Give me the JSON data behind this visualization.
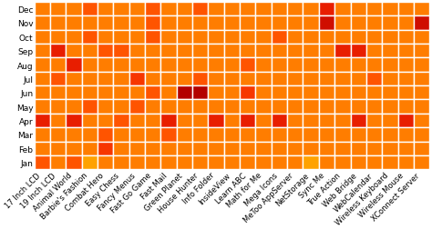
{
  "months": [
    "Dec",
    "Nov",
    "Oct",
    "Sep",
    "Aug",
    "Jul",
    "Jun",
    "May",
    "Apr",
    "Mar",
    "Feb",
    "Jan"
  ],
  "products": [
    "17 Inch LCD",
    "19 Inch LCD",
    "Animal World",
    "Barbie's Fashion",
    "Combat Hero",
    "Easy Chess",
    "Fancy Menus",
    "Fast Go Game",
    "Fast Mail",
    "Green Planet",
    "House Hunter",
    "Info Folder",
    "InsideView",
    "Learn ABC",
    "Math for Me",
    "Mega Icons",
    "MeToo AppServer",
    "NetStorage",
    "Sync Me",
    "True Action",
    "Web Bridge",
    "WebCalendar",
    "Wireless Keyboard",
    "Wireless Mouse",
    "XConnect Server"
  ],
  "data_rows_dec_to_jan": [
    [
      5,
      5,
      5,
      6,
      5,
      5,
      5,
      6,
      5,
      5,
      6,
      5,
      5,
      5,
      5,
      5,
      5,
      5,
      8,
      5,
      5,
      5,
      5,
      5,
      5
    ],
    [
      5,
      5,
      5,
      5,
      5,
      5,
      5,
      6,
      5,
      5,
      5,
      5,
      5,
      5,
      5,
      5,
      5,
      5,
      9,
      5,
      5,
      5,
      5,
      5,
      9
    ],
    [
      5,
      5,
      5,
      6,
      5,
      5,
      5,
      6,
      5,
      5,
      5,
      5,
      5,
      5,
      5,
      6,
      5,
      5,
      5,
      5,
      5,
      5,
      5,
      5,
      5
    ],
    [
      5,
      8,
      5,
      5,
      6,
      6,
      5,
      5,
      5,
      5,
      5,
      5,
      5,
      5,
      5,
      5,
      5,
      5,
      5,
      8,
      8,
      5,
      5,
      5,
      5
    ],
    [
      5,
      5,
      8,
      5,
      5,
      5,
      5,
      5,
      5,
      5,
      5,
      5,
      5,
      6,
      5,
      5,
      5,
      5,
      5,
      5,
      5,
      5,
      5,
      5,
      5
    ],
    [
      5,
      6,
      5,
      5,
      5,
      5,
      7,
      5,
      5,
      5,
      6,
      5,
      5,
      5,
      5,
      5,
      5,
      5,
      5,
      5,
      5,
      6,
      5,
      5,
      5
    ],
    [
      5,
      5,
      5,
      5,
      5,
      5,
      5,
      6,
      5,
      10,
      10,
      5,
      5,
      7,
      5,
      5,
      5,
      5,
      5,
      5,
      5,
      5,
      5,
      5,
      5
    ],
    [
      5,
      5,
      5,
      6,
      5,
      5,
      6,
      5,
      5,
      5,
      5,
      5,
      5,
      5,
      5,
      5,
      5,
      5,
      5,
      5,
      5,
      5,
      5,
      5,
      5
    ],
    [
      8,
      5,
      8,
      5,
      5,
      6,
      5,
      5,
      8,
      5,
      5,
      8,
      5,
      8,
      5,
      8,
      5,
      5,
      5,
      5,
      8,
      5,
      5,
      8,
      5
    ],
    [
      5,
      5,
      5,
      5,
      6,
      5,
      5,
      5,
      6,
      5,
      5,
      5,
      5,
      5,
      5,
      5,
      5,
      5,
      5,
      5,
      5,
      5,
      5,
      5,
      5
    ],
    [
      5,
      5,
      5,
      5,
      7,
      5,
      5,
      5,
      5,
      5,
      5,
      5,
      5,
      5,
      5,
      5,
      5,
      5,
      5,
      5,
      5,
      5,
      5,
      5,
      5
    ],
    [
      6,
      5,
      6,
      4,
      5,
      5,
      5,
      5,
      5,
      5,
      5,
      5,
      5,
      5,
      5,
      5,
      5,
      4,
      5,
      5,
      5,
      5,
      5,
      5,
      5
    ]
  ],
  "vmin": 1,
  "vmax": 10,
  "background_color": "#ffffff",
  "grid_color": "#ffffff",
  "label_fontsize": 6.5
}
